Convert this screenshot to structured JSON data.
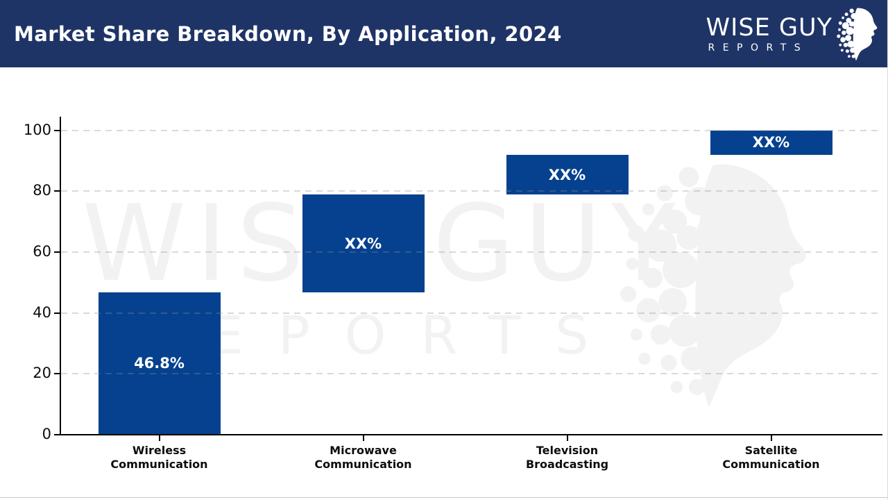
{
  "header": {
    "title": "Market Share Breakdown, By Application, 2024",
    "logo": {
      "line1": "WISE GUY",
      "line2": "REPORTS"
    }
  },
  "watermark": {
    "line1": "WISE GUY",
    "line2": "REPORTS"
  },
  "colors": {
    "header_bg": "#1F3466",
    "bar": "#05418F",
    "value_label": "#FFFFFF",
    "watermark": "#F2F2F2",
    "gridline": "#D9D9D9"
  },
  "chart_data": {
    "type": "bar",
    "subtype": "waterfall",
    "title": "Market Share Breakdown, By Application, 2024",
    "categories": [
      "Wireless Communication",
      "Microwave Communication",
      "Television Broadcasting",
      "Satellite Communication"
    ],
    "category_lines": [
      [
        "Wireless",
        "Communication"
      ],
      [
        "Microwave",
        "Communication"
      ],
      [
        "Television",
        "Broadcasting"
      ],
      [
        "Satellite",
        "Communication"
      ]
    ],
    "segments": [
      {
        "category": "Wireless Communication",
        "start": 0,
        "end": 46.8,
        "label": "46.8%"
      },
      {
        "category": "Microwave Communication",
        "start": 46.8,
        "end": 78.8,
        "label": "XX%"
      },
      {
        "category": "Television Broadcasting",
        "start": 78.8,
        "end": 91.8,
        "label": "XX%"
      },
      {
        "category": "Satellite Communication",
        "start": 91.8,
        "end": 100,
        "label": "XX%"
      }
    ],
    "yticks": [
      0,
      20,
      40,
      60,
      80,
      100
    ],
    "ylim": [
      0,
      105
    ],
    "xlabel": "",
    "ylabel": "",
    "grid": "horizontal-dashed",
    "legend": null,
    "bar_color": "#05418F",
    "value_label_color": "#FFFFFF"
  }
}
